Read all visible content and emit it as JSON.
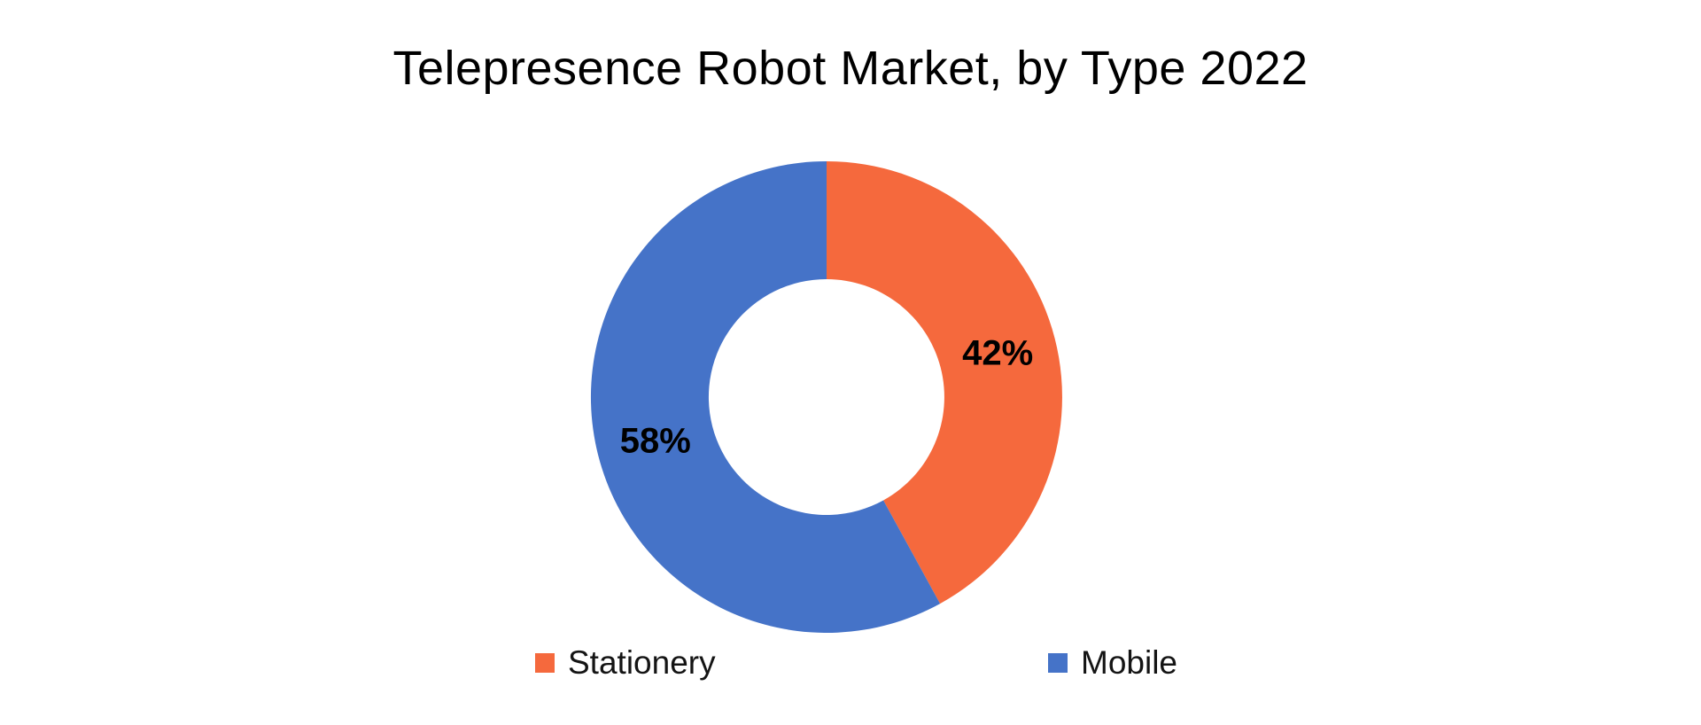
{
  "page": {
    "background": "#FFFFFF"
  },
  "chart_data": {
    "type": "pie",
    "subtype": "donut",
    "title": "Telepresence Robot Market, by Type 2022",
    "categories": [
      "Stationery",
      "Mobile"
    ],
    "values": [
      42,
      58
    ],
    "data_labels": [
      "42%",
      "58%"
    ],
    "colors": [
      "#F5693D",
      "#4573C8"
    ],
    "start_angle_deg": 0,
    "direction": "clockwise",
    "hole_ratio": 0.5,
    "legend_position": "bottom",
    "title_color": "#000000",
    "data_label_color": "#000000",
    "legend_text_color": "#141414"
  }
}
